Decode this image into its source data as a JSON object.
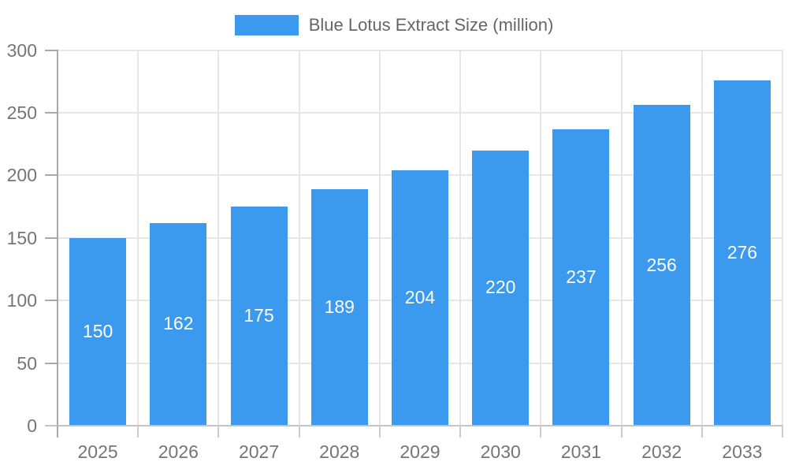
{
  "legend": {
    "label": "Blue Lotus Extract Size (million)"
  },
  "chart_data": {
    "type": "bar",
    "title": "",
    "categories": [
      "2025",
      "2026",
      "2027",
      "2028",
      "2029",
      "2030",
      "2031",
      "2032",
      "2033"
    ],
    "series": [
      {
        "name": "Blue Lotus Extract Size (million)",
        "values": [
          150,
          162,
          175,
          189,
          204,
          220,
          237,
          256,
          276
        ]
      }
    ],
    "xlabel": "",
    "ylabel": "",
    "ylim": [
      0,
      300
    ],
    "yticks": [
      0,
      50,
      100,
      150,
      200,
      250,
      300
    ],
    "grid": true,
    "legend_position": "top",
    "value_labels": "inside-center"
  },
  "colors": {
    "bar": "#3B99EE",
    "value_label": "#ffffff",
    "axis_text": "#757575",
    "legend_text": "#666666",
    "gridline": "#e6e6e6",
    "y_axis_line": "#a8a8a8",
    "x_axis_line": "#c4c4c4",
    "x_tick": "#cccccc",
    "background": "#ffffff"
  }
}
